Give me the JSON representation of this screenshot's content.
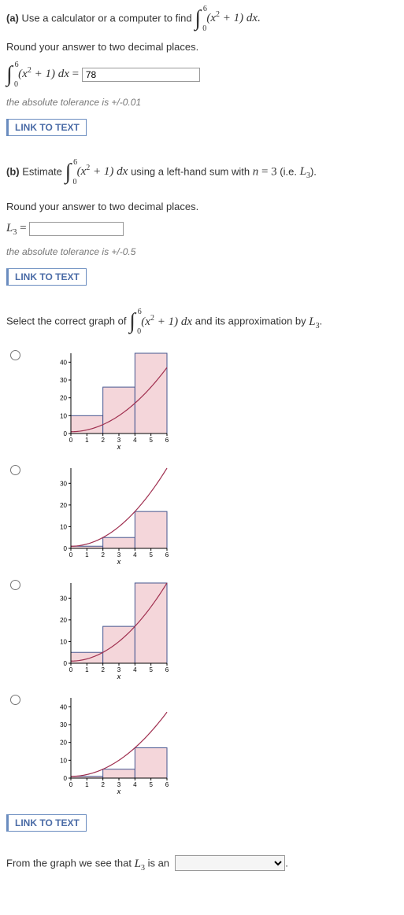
{
  "partA": {
    "label": "(a)",
    "prompt_pre": "Use a calculator or a computer to find",
    "integral_upper": "6",
    "integral_lower": "0",
    "integrand": "(x² + 1) dx.",
    "round_text": "Round your answer to two decimal places.",
    "eq_lhs_upper": "6",
    "eq_lhs_lower": "0",
    "eq_lhs_integrand": "(x² + 1) dx =",
    "input_value": "78",
    "tolerance": "the absolute tolerance is +/-0.01"
  },
  "link_text": "LINK TO TEXT",
  "partB": {
    "label": "(b)",
    "prompt_pre": "Estimate",
    "integral_upper": "6",
    "integral_lower": "0",
    "integrand": "(x² + 1) dx",
    "prompt_post_1": "using a left-hand sum with ",
    "prompt_post_2": "n = 3",
    "prompt_post_3": " (i.e. ",
    "prompt_post_4": "L",
    "prompt_post_5": "3",
    "prompt_post_6": ").",
    "round_text": "Round your answer to two decimal places.",
    "lhs": "L",
    "lhs_sub": "3",
    "lhs_eq": " =",
    "input_value": "",
    "tolerance": "the absolute tolerance is +/-0.5"
  },
  "graphQ": {
    "prompt_pre": "Select the correct graph of",
    "integral_upper": "6",
    "integral_lower": "0",
    "integrand": "(x² + 1) dx",
    "prompt_post_1": " and its approximation by ",
    "prompt_post_2": "L",
    "prompt_post_3": "3",
    "prompt_post_4": "."
  },
  "graphs": {
    "width": 150,
    "height": 130,
    "bg": "#ffffff",
    "axis_color": "#000000",
    "curve_color": "#a03050",
    "bar_fill": "#f4d6da",
    "bar_stroke": "#45568f",
    "tick_color": "#000000",
    "tick_font": 8,
    "xlabel": "x",
    "charts": [
      {
        "y_ticks": [
          0,
          10,
          20,
          30,
          40
        ],
        "y_max": 45,
        "x_ticks": [
          0,
          1,
          2,
          3,
          4,
          5,
          6
        ],
        "bars": [
          [
            0,
            2,
            10
          ],
          [
            2,
            4,
            26
          ],
          [
            4,
            6,
            45
          ]
        ]
      },
      {
        "y_ticks": [
          0,
          10,
          20,
          30
        ],
        "y_max": 37,
        "x_ticks": [
          0,
          1,
          2,
          3,
          4,
          5,
          6
        ],
        "bars": [
          [
            0,
            2,
            1
          ],
          [
            2,
            4,
            5
          ],
          [
            4,
            6,
            17
          ]
        ]
      },
      {
        "y_ticks": [
          0,
          10,
          20,
          30
        ],
        "y_max": 37,
        "x_ticks": [
          0,
          1,
          2,
          3,
          4,
          5,
          6
        ],
        "bars": [
          [
            0,
            2,
            5
          ],
          [
            2,
            4,
            17
          ],
          [
            4,
            6,
            37
          ]
        ]
      },
      {
        "y_ticks": [
          0,
          10,
          20,
          30,
          40
        ],
        "y_max": 45,
        "x_ticks": [
          0,
          1,
          2,
          3,
          4,
          5,
          6
        ],
        "bars": [
          [
            0,
            2,
            1
          ],
          [
            2,
            4,
            5
          ],
          [
            4,
            6,
            17
          ]
        ]
      }
    ]
  },
  "final": {
    "text_pre": "From the graph we see that ",
    "L": "L",
    "sub": "3",
    "text_post": " is an"
  }
}
